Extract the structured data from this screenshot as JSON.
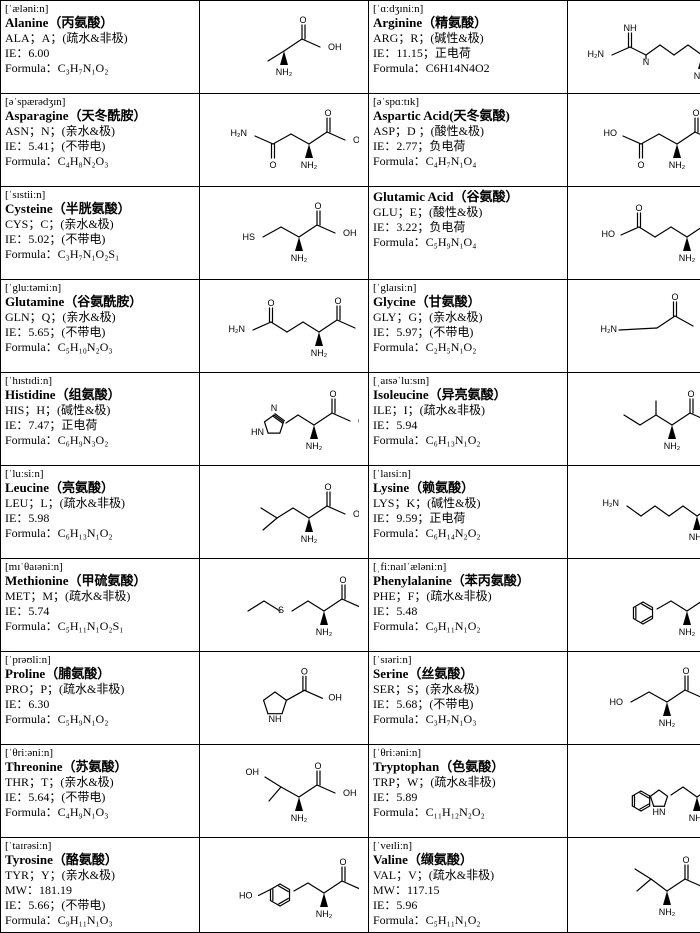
{
  "type": "table",
  "columns": 4,
  "rows": 10,
  "border_color": "#000000",
  "background_color": "#ffffff",
  "text_color": "#000000",
  "font_family": "SimSun / Times New Roman",
  "ipa_fontsize": 11,
  "name_fontsize": 13,
  "line_fontsize": 12,
  "amino_acids": [
    {
      "ipa": "[ˈæləniːn]",
      "name": "Alanine（丙氨酸）",
      "codes": "ALA；A；(疏水&非极)",
      "ie": "IE：6.00",
      "extra": "",
      "formula": "Formula：C₃H₇N₁O₂",
      "structure": "alanine"
    },
    {
      "ipa": "[ˈɑːdʒɪniːn]",
      "name": "Arginine（精氨酸）",
      "codes": "ARG；R；(碱性&极)",
      "ie": "IE：11.15；正电荷",
      "extra": "",
      "formula": "Formula：C6H14N4O2",
      "structure": "arginine"
    },
    {
      "ipa": "[əˈspærədʒɪn]",
      "name": "Asparagine（天冬酰胺）",
      "codes": "ASN；N；(亲水&极)",
      "ie": "IE：5.41；(不带电)",
      "extra": "",
      "formula": "Formula：C₄H₈N₂O₃",
      "structure": "asparagine"
    },
    {
      "ipa": "[əˈspɑːtɪk]",
      "name": "Aspartic Acid(天冬氨酸)",
      "codes": "ASP；D ；(酸性&极)",
      "ie": "IE：2.77；负电荷",
      "extra": "",
      "formula": "Formula：C₄H₇N₁O₄",
      "structure": "aspartic"
    },
    {
      "ipa": "[ˈsɪstiiːn]",
      "name": "Cysteine（半胱氨酸）",
      "codes": "CYS；C；(亲水&极)",
      "ie": "IE：5.02；(不带电)",
      "extra": "",
      "formula": "Formula：C₃H₇N₁O₂S₁",
      "structure": "cysteine"
    },
    {
      "ipa": "",
      "name": "Glutamic Acid（谷氨酸）",
      "codes": "GLU；E；(酸性&极)",
      "ie": "IE：3.22；负电荷",
      "extra": "",
      "formula": "Formula：C₅H₉N₁O₄",
      "structure": "glutamic"
    },
    {
      "ipa": "[ˈgluːtəmiːn]",
      "name": "Glutamine（谷氨酰胺）",
      "codes": "GLN；Q；(亲水&极)",
      "ie": "IE：5.65；(不带电)",
      "extra": "",
      "formula": "Formula：C₅H₁₀N₂O₃",
      "structure": "glutamine"
    },
    {
      "ipa": "[ˈglaɪsiːn]",
      "name": "Glycine（甘氨酸）",
      "codes": "GLY；G；(亲水&极)",
      "ie": "IE：5.97；(不带电)",
      "extra": "",
      "formula": "Formula：C₂H₅N₁O₂",
      "structure": "glycine"
    },
    {
      "ipa": "[ˈhɪstɪdiːn]",
      "name": "Histidine（组氨酸）",
      "codes": "HIS；H；(碱性&极)",
      "ie": "IE：7.47；正电荷",
      "extra": "",
      "formula": "Formula：C₆H₉N₃O₂",
      "structure": "histidine"
    },
    {
      "ipa": "[ˌaɪsəˈluːsɪn]",
      "name": "Isoleucine（异亮氨酸）",
      "codes": "ILE；I；(疏水&非极)",
      "ie": "IE：5.94",
      "extra": "",
      "formula": "Formula：C₆H₁₃N₁O₂",
      "structure": "isoleucine"
    },
    {
      "ipa": "[ˈluːsiːn]",
      "name": "Leucine（亮氨酸）",
      "codes": "LEU；L；(疏水&非极)",
      "ie": "IE：5.98",
      "extra": "",
      "formula": "Formula：C₆H₁₃N₁O₂",
      "structure": "leucine"
    },
    {
      "ipa": "[ˈlaɪsiːn]",
      "name": "Lysine（赖氨酸）",
      "codes": "LYS；K；(碱性&极)",
      "ie": "IE：9.59；正电荷",
      "extra": "",
      "formula": "Formula：C₆H₁₄N₂O₂",
      "structure": "lysine"
    },
    {
      "ipa": "[mɪˈθaɪəniːn]",
      "name": "Methionine（甲硫氨酸）",
      "codes": "MET；M；(疏水&非极)",
      "ie": "IE：5.74",
      "extra": "",
      "formula": "Formula：C₅H₁₁N₁O₂S₁",
      "structure": "methionine"
    },
    {
      "ipa": "[ˌfiːnaɪlˈæləniːn]",
      "name": "Phenylalanine（苯丙氨酸）",
      "codes": "PHE；F；(疏水&非极)",
      "ie": "IE：5.48",
      "extra": "",
      "formula": "Formula：C₉H₁₁N₁O₂",
      "structure": "phenylalanine"
    },
    {
      "ipa": "[ˈprəʊliːn]",
      "name": "Proline（脯氨酸）",
      "codes": "PRO；P；(疏水&非极)",
      "ie": "IE：6.30",
      "extra": "",
      "formula": "Formula：C₅H₉N₁O₂",
      "structure": "proline"
    },
    {
      "ipa": "[ˈsɪəriːn]",
      "name": "Serine（丝氨酸）",
      "codes": "SER；S；(亲水&极)",
      "ie": "IE：5.68；(不带电)",
      "extra": "",
      "formula": "Formula：C₃H₇N₁O₃",
      "structure": "serine"
    },
    {
      "ipa": "[ˈθriːəniːn]",
      "name": "Threonine（苏氨酸）",
      "codes": "THR；T；(亲水&极)",
      "ie": "IE：5.64；(不带电)",
      "extra": "",
      "formula": "Formula：C₄H₉N₁O₃",
      "structure": "threonine"
    },
    {
      "ipa": "[ˈθriːəniːn]",
      "name": "Tryptophan（色氨酸）",
      "codes": "TRP；W；(疏水&非极)",
      "ie": "IE：5.89",
      "extra": "",
      "formula": "Formula：C₁₁H₁₂N₂O₂",
      "structure": "tryptophan"
    },
    {
      "ipa": "[ˈtaɪrəsiːn]",
      "name": "Tyrosine（酪氨酸）",
      "codes": "TYR；Y；(亲水&极)",
      "ie": "MW：181.19",
      "extra": "IE：5.66；(不带电)",
      "formula": "Formula：C₉H₁₁N₁O₃",
      "structure": "tyrosine"
    },
    {
      "ipa": "[ˈveɪliːn]",
      "name": "Valine（缬氨酸）",
      "codes": "VAL；V；(疏水&非极)",
      "ie": "MW：117.15",
      "extra": "IE：5.96",
      "formula": "Formula：C₅H₁₁N₁O₂",
      "structure": "valine"
    }
  ],
  "structure_style": {
    "stroke": "#000000",
    "stroke_width": 1.2,
    "label_font": "9px sans-serif",
    "label_color": "#000000"
  }
}
